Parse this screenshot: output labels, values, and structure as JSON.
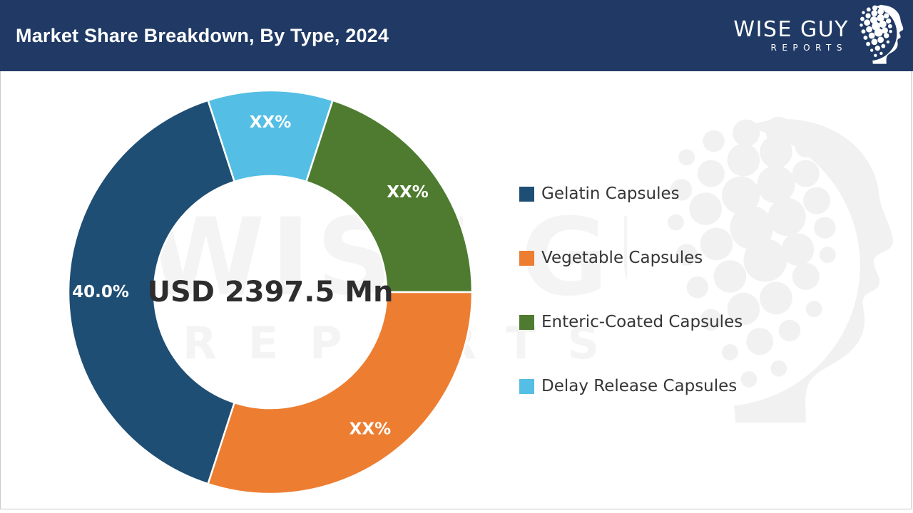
{
  "header": {
    "title": "Market Share Breakdown, By Type, 2024",
    "bg_color": "#203A65",
    "logo": {
      "line1": "WISE GUY",
      "line2": "REPORTS",
      "face_icon": "dotted-head-profile-icon"
    }
  },
  "chart_data": {
    "type": "pie",
    "subtype": "donut",
    "title": "Market Share Breakdown, By Type, 2024",
    "center_label": "USD 2397.5 Mn",
    "units": "% market share",
    "legend_position": "right",
    "segments": [
      {
        "name": "Gelatin Capsules",
        "value": 40.0,
        "label": "40.0%",
        "color": "#1F4E74"
      },
      {
        "name": "Vegetable Capsules",
        "value": 30.0,
        "label": "XX%",
        "color": "#ED7D31"
      },
      {
        "name": "Enteric-Coated Capsules",
        "value": 20.0,
        "label": "XX%",
        "color": "#4E7B2F"
      },
      {
        "name": "Delay Release Capsules",
        "value": 10.0,
        "label": "XX%",
        "color": "#54BEE4"
      }
    ],
    "geometry": {
      "start_angle_deg": -18,
      "clockwise_order": [
        3,
        2,
        1,
        0
      ]
    },
    "text_color": "#2d2d2d",
    "label_color": "#ffffff"
  },
  "watermark": {
    "line1": "WISE GUY",
    "line2": "REPORTS",
    "color": "#f4f4f4"
  }
}
